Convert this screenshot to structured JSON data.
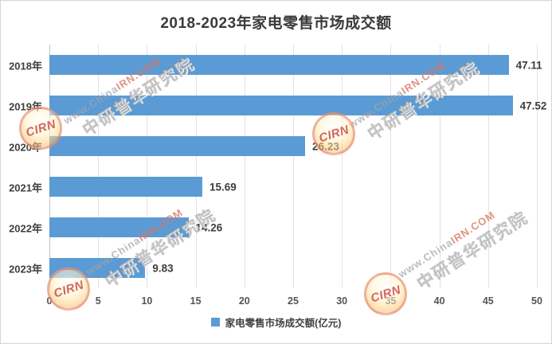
{
  "chart_data": {
    "type": "bar",
    "orientation": "horizontal",
    "title": "2018-2023年家电零售市场成交额",
    "categories": [
      "2018年",
      "2019年",
      "2020年",
      "2021年",
      "2022年",
      "2023年"
    ],
    "values": [
      47.11,
      47.52,
      26.23,
      15.69,
      14.26,
      9.83
    ],
    "value_labels": [
      "47.11",
      "47.52",
      "26.23",
      "15.69",
      "14.26",
      "9.83"
    ],
    "xlim": [
      0,
      50
    ],
    "xticks": [
      0,
      5,
      10,
      15,
      20,
      25,
      30,
      35,
      40,
      45,
      50
    ],
    "grid": true,
    "legend": {
      "label": "家电零售市场成交额(亿元)",
      "position": "bottom"
    },
    "bar_color": "#5B9BD5"
  },
  "watermark": {
    "url_prefix": "www.China",
    "url_highlight": "IRN.COM",
    "brand": "中研普华研究院",
    "logo_text": "CIRN"
  },
  "colors": {
    "bar": "#5B9BD5",
    "gridline": "#e2e2e2",
    "axis_line": "#c4c4c4",
    "title_text": "#3a3a3a",
    "label_text": "#3f3f3f",
    "tick_text": "#555555"
  }
}
